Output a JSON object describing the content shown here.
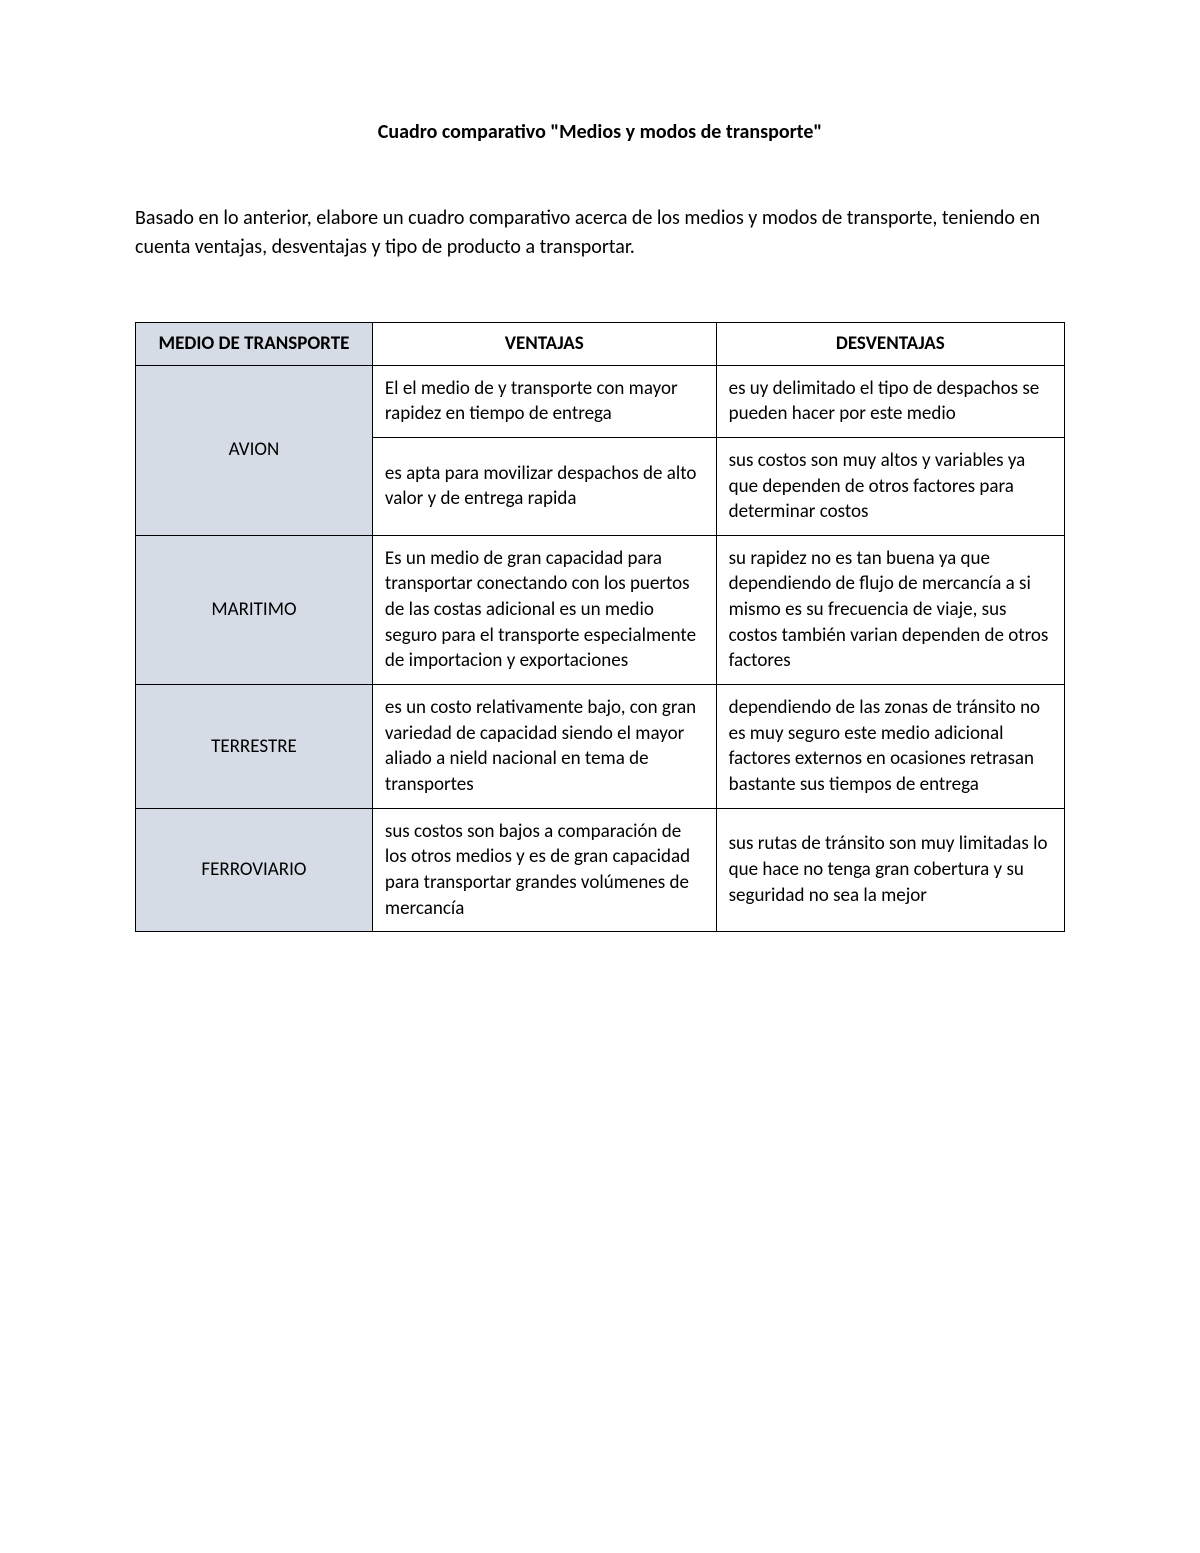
{
  "title": "Cuadro comparativo \"Medios y modos de transporte\"",
  "intro": "Basado en lo anterior, elabore un cuadro comparativo acerca de los medios y modos de transporte, teniendo en cuenta ventajas, desventajas y tipo de producto a transportar.",
  "table": {
    "type": "table",
    "columns": [
      "MEDIO DE TRANSPORTE",
      "VENTAJAS",
      "DESVENTAJAS"
    ],
    "column_widths_pct": [
      25.5,
      37,
      37.5
    ],
    "header_bg_colors": [
      "#d5dce6",
      "#ffffff",
      "#ffffff"
    ],
    "first_col_bg_color": "#d5dce6",
    "border_color": "#000000",
    "font_size_pt": 14,
    "rows": [
      {
        "medio": "AVION",
        "ventajas": [
          "El el medio de y transporte con mayor rapidez en tiempo de entrega",
          "es apta para movilizar despachos de alto valor y de entrega rapida"
        ],
        "desventajas": [
          "es uy delimitado el tipo de despachos se pueden hacer por este medio",
          "sus costos son muy altos y variables ya que dependen de otros factores para determinar costos"
        ]
      },
      {
        "medio": "MARITIMO",
        "ventajas": [
          "Es un medio de gran capacidad para transportar conectando con los puertos de las costas adicional es un medio seguro para el transporte especialmente de importacion y exportaciones"
        ],
        "desventajas": [
          "su rapidez no es tan buena ya que dependiendo de flujo de mercancía a si mismo es su frecuencia de viaje, sus costos también varian dependen de otros factores"
        ]
      },
      {
        "medio": "TERRESTRE",
        "ventajas": [
          "es un costo relativamente bajo, con gran variedad de capacidad siendo el mayor aliado a nield nacional en tema de transportes"
        ],
        "desventajas": [
          "dependiendo de las zonas de tránsito no es muy seguro este medio adicional factores externos en ocasiones retrasan bastante sus tiempos de entrega"
        ]
      },
      {
        "medio": "FERROVIARIO",
        "ventajas": [
          "sus costos son bajos a comparación de los otros medios y es de gran capacidad para transportar grandes volúmenes de mercancía"
        ],
        "desventajas": [
          "sus rutas de tránsito son muy limitadas lo que hace no tenga gran cobertura y su seguridad no sea la mejor"
        ]
      }
    ]
  }
}
